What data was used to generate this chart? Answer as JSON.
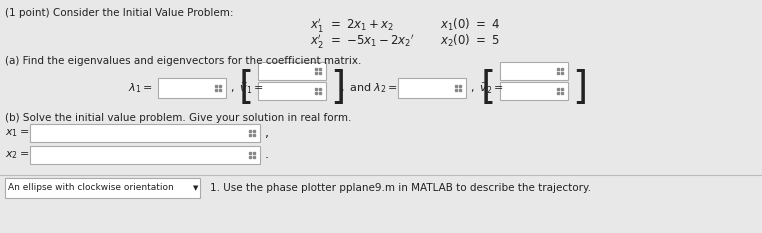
{
  "bg_color": "#e8e8e8",
  "white": "#ffffff",
  "light_gray": "#d0d0d0",
  "dark_gray": "#555555",
  "text_color": "#222222",
  "title": "(1 point) Consider the Initial Value Problem:",
  "eq1": "x₁′  =  2x₁ + x₂",
  "eq2": "x₂′  =  −5x₁ − 2x₂’",
  "ic1": "x₁(0)  =  4",
  "ic2": "x₂(0)  =  5",
  "part_a": "(a) Find the eigenvalues and eigenvectors for the coefficient matrix.",
  "lambda1_label": "λ₁ =",
  "v1_label": ", ν⃗1 =",
  "and_lambda2": ", and λ₂ =",
  "v2_label": ", ν⃗2 =",
  "part_b": "(b) Solve the initial value problem. Give your solution in real form.",
  "x1_label": "x₁ =",
  "x2_label": "x₂ =",
  "dropdown_text": "An ellipse with clockwise orientation",
  "bottom_note": "1. Use the phase plotter pplane9.m in MATLAB to describe the trajectory.",
  "grid_icon": "∷"
}
